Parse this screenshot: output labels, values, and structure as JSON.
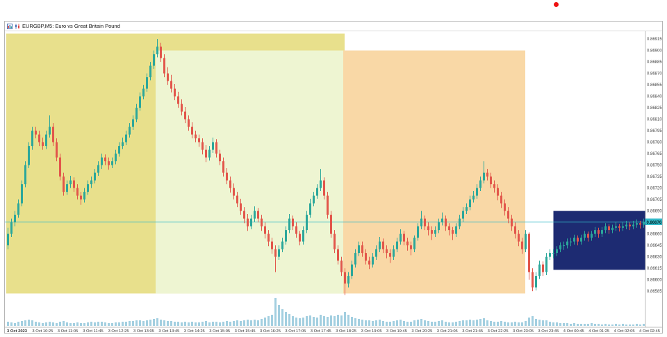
{
  "window": {
    "title": "EURGBP,M5: Euro vs Great Britain Pound",
    "icons": [
      "chart-grid-icon",
      "candlestick-icon"
    ]
  },
  "status_dot_color": "#ee1111",
  "price_axis": {
    "labels": [
      "0.86915",
      "0.86900",
      "0.86885",
      "0.86870",
      "0.86855",
      "0.86840",
      "0.86825",
      "0.86810",
      "0.86795",
      "0.86780",
      "0.86765",
      "0.86750",
      "0.86735",
      "0.86720",
      "0.86705",
      "0.86690",
      "0.86675",
      "0.86660",
      "0.86645",
      "0.86630",
      "0.86615",
      "0.86600",
      "0.86585"
    ],
    "current_price_label": "0.86676"
  },
  "time_axis": {
    "labels": [
      "3 Oct 2023",
      "3 Oct 10:25",
      "3 Oct 11:05",
      "3 Oct 11:45",
      "3 Oct 12:25",
      "3 Oct 13:05",
      "3 Oct 13:45",
      "3 Oct 14:25",
      "3 Oct 15:05",
      "3 Oct 15:45",
      "3 Oct 16:25",
      "3 Oct 17:05",
      "3 Oct 17:45",
      "3 Oct 18:25",
      "3 Oct 19:05",
      "3 Oct 19:45",
      "3 Oct 20:25",
      "3 Oct 21:05",
      "3 Oct 21:45",
      "3 Oct 22:25",
      "3 Oct 23:05",
      "3 Oct 23:45",
      "4 Oct 00:45",
      "4 Oct 01:25",
      "4 Oct 02:05",
      "4 Oct 02:45"
    ]
  },
  "chart_data": {
    "type": "candlestick",
    "title": "EURGBP,M5: Euro vs Great Britain Pound",
    "symbol": "EURGBP",
    "timeframe": "M5",
    "current_price": 0.86676,
    "price_range": [
      0.8658,
      0.86922
    ],
    "colors": {
      "up": "#2ba79b",
      "down": "#e2564b",
      "volume": "#a3cfe0",
      "price_line": "#35bac8",
      "badge_text": "#06282d",
      "axis_text": "#444444"
    },
    "zones": [
      {
        "name": "yellow-session-zone",
        "color": "#e6dd80",
        "opacity": 0.9,
        "from": 0,
        "to": 97,
        "price_top": 0.86922,
        "price_bottom": 0.86582
      },
      {
        "name": "green-session-zone",
        "color": "#eef5d2",
        "opacity": 1,
        "from": 43,
        "to": 97,
        "price_top": 0.869,
        "price_bottom": 0.86582
      },
      {
        "name": "orange-session-zone",
        "color": "#f9d8a6",
        "opacity": 1,
        "from": 97,
        "to": 149,
        "price_top": 0.869,
        "price_bottom": 0.86582
      },
      {
        "name": "navy-highlight-box",
        "color": "#1d2b72",
        "opacity": 1,
        "from": 157.5,
        "to": 183.6,
        "price_top": 0.8669,
        "price_bottom": 0.86613
      }
    ],
    "candles": [
      [
        0.86645,
        0.86668,
        0.8664,
        0.8666
      ],
      [
        0.8666,
        0.8668,
        0.86656,
        0.86675
      ],
      [
        0.86675,
        0.8669,
        0.8667,
        0.86685
      ],
      [
        0.86685,
        0.86705,
        0.86681,
        0.867
      ],
      [
        0.867,
        0.8673,
        0.86696,
        0.86725
      ],
      [
        0.86725,
        0.86755,
        0.86721,
        0.8675
      ],
      [
        0.8675,
        0.8678,
        0.86746,
        0.86775
      ],
      [
        0.86775,
        0.868,
        0.8677,
        0.86795
      ],
      [
        0.86795,
        0.868,
        0.86785,
        0.8679
      ],
      [
        0.8679,
        0.86795,
        0.86775,
        0.8678
      ],
      [
        0.8678,
        0.86786,
        0.8677,
        0.86775
      ],
      [
        0.86775,
        0.86795,
        0.86771,
        0.8679
      ],
      [
        0.8679,
        0.86815,
        0.86786,
        0.868
      ],
      [
        0.868,
        0.86805,
        0.86775,
        0.8678
      ],
      [
        0.8678,
        0.86785,
        0.86755,
        0.8676
      ],
      [
        0.8676,
        0.86765,
        0.8673,
        0.86735
      ],
      [
        0.86735,
        0.8674,
        0.8671,
        0.86715
      ],
      [
        0.86715,
        0.8673,
        0.86711,
        0.86725
      ],
      [
        0.86725,
        0.86736,
        0.8672,
        0.8673
      ],
      [
        0.8673,
        0.86734,
        0.86715,
        0.8672
      ],
      [
        0.8672,
        0.86725,
        0.86705,
        0.8671
      ],
      [
        0.8671,
        0.86715,
        0.86698,
        0.86705
      ],
      [
        0.86705,
        0.8672,
        0.86701,
        0.86715
      ],
      [
        0.86715,
        0.8673,
        0.86711,
        0.86725
      ],
      [
        0.86725,
        0.86735,
        0.8672,
        0.8673
      ],
      [
        0.8673,
        0.86745,
        0.86726,
        0.8674
      ],
      [
        0.8674,
        0.86755,
        0.86736,
        0.8675
      ],
      [
        0.8675,
        0.86765,
        0.86745,
        0.8676
      ],
      [
        0.8676,
        0.86764,
        0.8675,
        0.86755
      ],
      [
        0.86755,
        0.8676,
        0.86744,
        0.8675
      ],
      [
        0.8675,
        0.8676,
        0.86746,
        0.86755
      ],
      [
        0.86755,
        0.8677,
        0.86751,
        0.86765
      ],
      [
        0.86765,
        0.8678,
        0.86761,
        0.86775
      ],
      [
        0.86775,
        0.86786,
        0.86771,
        0.8678
      ],
      [
        0.8678,
        0.86795,
        0.86776,
        0.8679
      ],
      [
        0.8679,
        0.86805,
        0.86786,
        0.868
      ],
      [
        0.868,
        0.86815,
        0.86796,
        0.8681
      ],
      [
        0.8681,
        0.8683,
        0.86806,
        0.86825
      ],
      [
        0.86825,
        0.86845,
        0.86821,
        0.8684
      ],
      [
        0.8684,
        0.86855,
        0.86836,
        0.8685
      ],
      [
        0.8685,
        0.8687,
        0.86846,
        0.86865
      ],
      [
        0.86865,
        0.86885,
        0.86861,
        0.8688
      ],
      [
        0.8688,
        0.869,
        0.86876,
        0.86895
      ],
      [
        0.86895,
        0.86915,
        0.86891,
        0.86905
      ],
      [
        0.86905,
        0.8691,
        0.86885,
        0.8689
      ],
      [
        0.8689,
        0.86895,
        0.86865,
        0.8687
      ],
      [
        0.8687,
        0.86878,
        0.86855,
        0.8686
      ],
      [
        0.8686,
        0.86868,
        0.86845,
        0.8685
      ],
      [
        0.8685,
        0.86856,
        0.86835,
        0.8684
      ],
      [
        0.8684,
        0.86846,
        0.86825,
        0.8683
      ],
      [
        0.8683,
        0.86836,
        0.86815,
        0.8682
      ],
      [
        0.8682,
        0.86826,
        0.86805,
        0.8681
      ],
      [
        0.8681,
        0.86815,
        0.86795,
        0.868
      ],
      [
        0.868,
        0.86806,
        0.86785,
        0.8679
      ],
      [
        0.8679,
        0.86795,
        0.8678,
        0.86785
      ],
      [
        0.86785,
        0.8679,
        0.86774,
        0.8678
      ],
      [
        0.8678,
        0.86785,
        0.86764,
        0.8677
      ],
      [
        0.8677,
        0.86776,
        0.86754,
        0.8676
      ],
      [
        0.8676,
        0.86775,
        0.86756,
        0.8677
      ],
      [
        0.8677,
        0.86786,
        0.86766,
        0.8678
      ],
      [
        0.8678,
        0.86784,
        0.8676,
        0.86765
      ],
      [
        0.86765,
        0.8677,
        0.8675,
        0.86755
      ],
      [
        0.86755,
        0.8676,
        0.86735,
        0.8674
      ],
      [
        0.8674,
        0.86746,
        0.86725,
        0.8673
      ],
      [
        0.8673,
        0.86735,
        0.86714,
        0.8672
      ],
      [
        0.8672,
        0.86726,
        0.86705,
        0.8671
      ],
      [
        0.8671,
        0.86715,
        0.86695,
        0.867
      ],
      [
        0.867,
        0.86706,
        0.86685,
        0.8669
      ],
      [
        0.8669,
        0.86695,
        0.86674,
        0.8668
      ],
      [
        0.8668,
        0.86686,
        0.86664,
        0.8667
      ],
      [
        0.8667,
        0.86685,
        0.86666,
        0.8668
      ],
      [
        0.8668,
        0.86696,
        0.86676,
        0.8669
      ],
      [
        0.8669,
        0.86694,
        0.86675,
        0.8668
      ],
      [
        0.8668,
        0.86685,
        0.86664,
        0.8667
      ],
      [
        0.8667,
        0.86675,
        0.86654,
        0.8666
      ],
      [
        0.8666,
        0.86665,
        0.86644,
        0.8665
      ],
      [
        0.8665,
        0.86655,
        0.86634,
        0.8664
      ],
      [
        0.8664,
        0.86645,
        0.8661,
        0.8663
      ],
      [
        0.8663,
        0.86645,
        0.86626,
        0.8664
      ],
      [
        0.8664,
        0.86655,
        0.86636,
        0.8665
      ],
      [
        0.8665,
        0.8667,
        0.86646,
        0.86665
      ],
      [
        0.86665,
        0.86686,
        0.86661,
        0.8668
      ],
      [
        0.8668,
        0.86684,
        0.86665,
        0.8667
      ],
      [
        0.8667,
        0.86675,
        0.86655,
        0.8666
      ],
      [
        0.8666,
        0.86664,
        0.86645,
        0.8665
      ],
      [
        0.8665,
        0.8667,
        0.86646,
        0.86665
      ],
      [
        0.86665,
        0.8669,
        0.86661,
        0.86685
      ],
      [
        0.86685,
        0.86706,
        0.86681,
        0.867
      ],
      [
        0.867,
        0.86715,
        0.86696,
        0.8671
      ],
      [
        0.8671,
        0.86725,
        0.86706,
        0.8672
      ],
      [
        0.8672,
        0.86745,
        0.86716,
        0.8673
      ],
      [
        0.8673,
        0.86734,
        0.86705,
        0.8671
      ],
      [
        0.8671,
        0.86715,
        0.8668,
        0.86685
      ],
      [
        0.86685,
        0.8669,
        0.86655,
        0.8666
      ],
      [
        0.8666,
        0.86665,
        0.86635,
        0.8664
      ],
      [
        0.8664,
        0.86645,
        0.8662,
        0.86625
      ],
      [
        0.86625,
        0.8663,
        0.86605,
        0.8661
      ],
      [
        0.8661,
        0.86615,
        0.8658,
        0.86595
      ],
      [
        0.86595,
        0.8661,
        0.8659,
        0.86605
      ],
      [
        0.86605,
        0.86625,
        0.86601,
        0.8662
      ],
      [
        0.8662,
        0.8664,
        0.86616,
        0.86635
      ],
      [
        0.86635,
        0.8665,
        0.86631,
        0.86645
      ],
      [
        0.86645,
        0.8665,
        0.8663,
        0.86635
      ],
      [
        0.86635,
        0.8664,
        0.8662,
        0.86625
      ],
      [
        0.86625,
        0.8663,
        0.86614,
        0.8662
      ],
      [
        0.8662,
        0.86635,
        0.86616,
        0.8663
      ],
      [
        0.8663,
        0.86645,
        0.86626,
        0.8664
      ],
      [
        0.8664,
        0.86656,
        0.86636,
        0.8665
      ],
      [
        0.8665,
        0.86654,
        0.86635,
        0.8664
      ],
      [
        0.8664,
        0.86645,
        0.86628,
        0.86635
      ],
      [
        0.86635,
        0.8664,
        0.86622,
        0.8663
      ],
      [
        0.8663,
        0.86645,
        0.86626,
        0.8664
      ],
      [
        0.8664,
        0.86655,
        0.86636,
        0.8665
      ],
      [
        0.8665,
        0.86666,
        0.86646,
        0.8666
      ],
      [
        0.8666,
        0.86664,
        0.86645,
        0.8665
      ],
      [
        0.8665,
        0.86655,
        0.86638,
        0.86645
      ],
      [
        0.86645,
        0.8665,
        0.86632,
        0.8664
      ],
      [
        0.8664,
        0.86658,
        0.86636,
        0.86655
      ],
      [
        0.86655,
        0.86674,
        0.86651,
        0.8667
      ],
      [
        0.8667,
        0.8669,
        0.86666,
        0.8668
      ],
      [
        0.8668,
        0.86684,
        0.86665,
        0.8667
      ],
      [
        0.8667,
        0.86675,
        0.86658,
        0.86665
      ],
      [
        0.86665,
        0.8667,
        0.86652,
        0.8666
      ],
      [
        0.8666,
        0.8667,
        0.86656,
        0.86665
      ],
      [
        0.86665,
        0.8668,
        0.86661,
        0.86675
      ],
      [
        0.86675,
        0.86688,
        0.86671,
        0.8668
      ],
      [
        0.8668,
        0.86684,
        0.86664,
        0.8667
      ],
      [
        0.8667,
        0.86674,
        0.86658,
        0.86665
      ],
      [
        0.86665,
        0.86669,
        0.86652,
        0.8666
      ],
      [
        0.8666,
        0.86674,
        0.86656,
        0.8667
      ],
      [
        0.8667,
        0.86685,
        0.86666,
        0.8668
      ],
      [
        0.8668,
        0.86695,
        0.86676,
        0.8669
      ],
      [
        0.8669,
        0.867,
        0.86686,
        0.86695
      ],
      [
        0.86695,
        0.8671,
        0.86691,
        0.86705
      ],
      [
        0.86705,
        0.86716,
        0.86701,
        0.8671
      ],
      [
        0.8671,
        0.86725,
        0.86706,
        0.8672
      ],
      [
        0.8672,
        0.86735,
        0.86716,
        0.8673
      ],
      [
        0.8673,
        0.86755,
        0.86726,
        0.8674
      ],
      [
        0.8674,
        0.86745,
        0.8673,
        0.86735
      ],
      [
        0.86735,
        0.8674,
        0.8672,
        0.86725
      ],
      [
        0.86725,
        0.8673,
        0.86714,
        0.8672
      ],
      [
        0.8672,
        0.86725,
        0.86704,
        0.8671
      ],
      [
        0.8671,
        0.86715,
        0.86694,
        0.867
      ],
      [
        0.867,
        0.86705,
        0.86684,
        0.8669
      ],
      [
        0.8669,
        0.86695,
        0.86674,
        0.8668
      ],
      [
        0.8668,
        0.86685,
        0.86664,
        0.8667
      ],
      [
        0.8667,
        0.86675,
        0.86654,
        0.8666
      ],
      [
        0.8666,
        0.86665,
        0.86644,
        0.8665
      ],
      [
        0.8665,
        0.86655,
        0.86634,
        0.8664
      ],
      [
        0.8664,
        0.86665,
        0.86636,
        0.8666
      ],
      [
        0.8666,
        0.86662,
        0.866,
        0.8661
      ],
      [
        0.8661,
        0.86615,
        0.86585,
        0.8659
      ],
      [
        0.8659,
        0.8661,
        0.86586,
        0.86605
      ],
      [
        0.86605,
        0.86625,
        0.86601,
        0.8662
      ],
      [
        0.8662,
        0.86624,
        0.86605,
        0.8661
      ],
      [
        0.8661,
        0.86635,
        0.86606,
        0.8663
      ],
      [
        0.8663,
        0.8664,
        0.86626,
        0.86635
      ],
      [
        0.86635,
        0.8664,
        0.86628,
        0.86635
      ],
      [
        0.86635,
        0.86644,
        0.86631,
        0.8664
      ],
      [
        0.8664,
        0.86649,
        0.86636,
        0.86645
      ],
      [
        0.86645,
        0.8665,
        0.86639,
        0.86645
      ],
      [
        0.86645,
        0.86654,
        0.86641,
        0.8665
      ],
      [
        0.8665,
        0.86655,
        0.86644,
        0.8665
      ],
      [
        0.8665,
        0.86659,
        0.86646,
        0.86655
      ],
      [
        0.86655,
        0.86658,
        0.86645,
        0.8665
      ],
      [
        0.8665,
        0.86659,
        0.86646,
        0.86655
      ],
      [
        0.86655,
        0.86664,
        0.86651,
        0.8666
      ],
      [
        0.8666,
        0.86663,
        0.8665,
        0.86655
      ],
      [
        0.86655,
        0.86664,
        0.86651,
        0.8666
      ],
      [
        0.8666,
        0.86669,
        0.86656,
        0.86665
      ],
      [
        0.86665,
        0.86668,
        0.86655,
        0.8666
      ],
      [
        0.8666,
        0.86669,
        0.86656,
        0.86665
      ],
      [
        0.86665,
        0.86674,
        0.86661,
        0.8667
      ],
      [
        0.8667,
        0.86673,
        0.8666,
        0.86665
      ],
      [
        0.86665,
        0.86672,
        0.86661,
        0.86668
      ],
      [
        0.86668,
        0.86675,
        0.86664,
        0.8667
      ],
      [
        0.8667,
        0.86673,
        0.86663,
        0.86668
      ],
      [
        0.86668,
        0.86675,
        0.86664,
        0.8667
      ],
      [
        0.8667,
        0.86677,
        0.86666,
        0.86672
      ],
      [
        0.86672,
        0.86675,
        0.86665,
        0.8667
      ],
      [
        0.8667,
        0.86677,
        0.86666,
        0.86672
      ],
      [
        0.86672,
        0.86679,
        0.86668,
        0.86674
      ],
      [
        0.86674,
        0.86677,
        0.86667,
        0.86672
      ],
      [
        0.86672,
        0.8668,
        0.86668,
        0.86676
      ]
    ],
    "volumes": [
      6,
      5,
      4,
      6,
      7,
      8,
      9,
      8,
      6,
      5,
      4,
      5,
      6,
      5,
      4,
      6,
      7,
      5,
      4,
      4,
      5,
      4,
      4,
      5,
      6,
      5,
      6,
      6,
      5,
      4,
      4,
      5,
      5,
      6,
      6,
      7,
      7,
      8,
      8,
      7,
      8,
      9,
      10,
      11,
      9,
      8,
      7,
      7,
      6,
      6,
      5,
      6,
      5,
      6,
      5,
      5,
      6,
      7,
      5,
      6,
      6,
      5,
      6,
      7,
      6,
      7,
      8,
      7,
      8,
      9,
      8,
      9,
      8,
      10,
      12,
      14,
      16,
      40,
      30,
      24,
      20,
      17,
      14,
      12,
      11,
      12,
      14,
      15,
      13,
      12,
      16,
      14,
      13,
      15,
      14,
      16,
      15,
      20,
      16,
      13,
      11,
      10,
      9,
      8,
      8,
      7,
      8,
      9,
      7,
      6,
      6,
      7,
      8,
      9,
      7,
      6,
      6,
      8,
      9,
      10,
      8,
      7,
      6,
      6,
      7,
      8,
      6,
      5,
      5,
      6,
      7,
      8,
      8,
      9,
      8,
      9,
      10,
      11,
      8,
      7,
      6,
      6,
      7,
      6,
      5,
      5,
      6,
      5,
      5,
      7,
      12,
      14,
      10,
      9,
      8,
      8,
      6,
      5,
      5,
      4,
      4,
      4,
      3,
      4,
      3,
      3,
      3,
      3,
      4,
      3,
      3,
      2,
      3,
      2,
      2,
      3,
      2,
      3,
      2,
      2,
      2,
      3,
      2,
      3
    ]
  }
}
